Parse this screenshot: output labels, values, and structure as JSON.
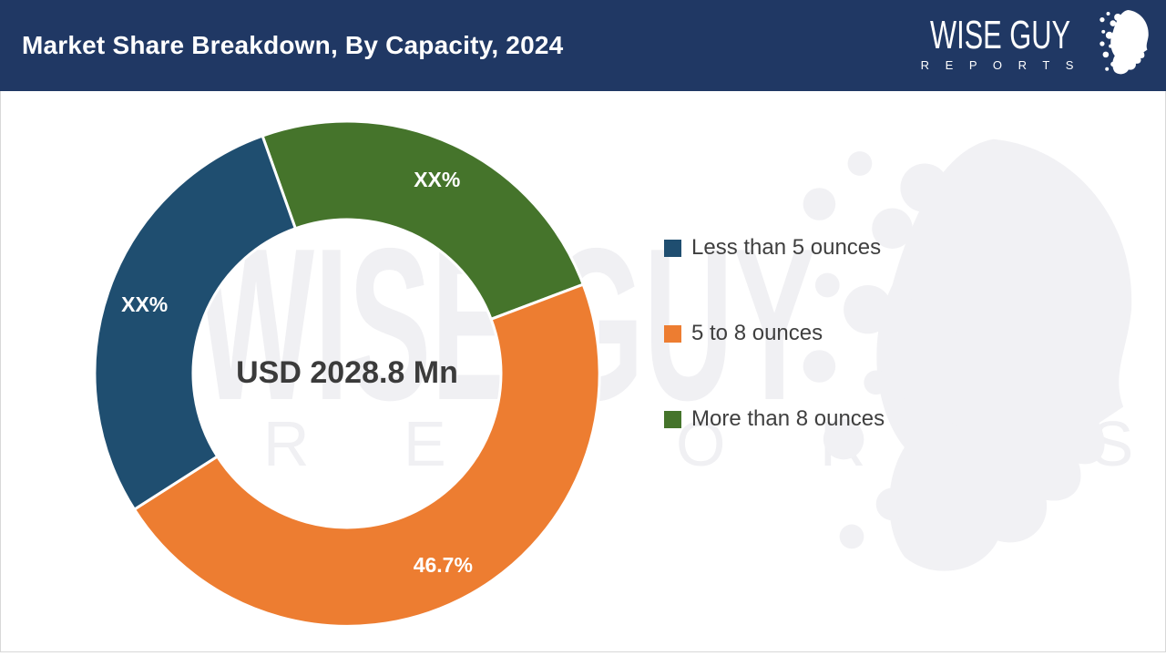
{
  "header": {
    "title": "Market Share Breakdown, By Capacity, 2024",
    "logo": {
      "line1": "WISE GUY",
      "line2": "R E P O R T S"
    }
  },
  "watermark": {
    "line1": "WISE GUY",
    "line2": "R E P O R T S"
  },
  "colors": {
    "header_bg": "#203864",
    "segment_blue": "#1F4E70",
    "segment_orange": "#ED7D31",
    "segment_green": "#45742B",
    "slice_label_text": "#FFFFFF",
    "center_text": "#3B3B3B",
    "legend_text": "#3F3F3F",
    "watermark_grey": "#F0F0F3",
    "border_grey": "#D8D8D8"
  },
  "chart_data": {
    "type": "pie",
    "subtype": "donut",
    "title": "Market Share Breakdown, By Capacity, 2024",
    "center_label": "USD 2028.8 Mn",
    "unit": "%",
    "segments": [
      {
        "name": "Less than 5 ounces",
        "value": 28.6,
        "display_label": "XX%",
        "color": "#1F4E70"
      },
      {
        "name": "5 to 8 ounces",
        "value": 46.7,
        "display_label": "46.7%",
        "color": "#ED7D31"
      },
      {
        "name": "More than 8 ounces",
        "value": 24.7,
        "display_label": "XX%",
        "color": "#45742B"
      }
    ],
    "start_angle_deg": -19.6,
    "draw_order": [
      2,
      1,
      0
    ],
    "hole_radius_ratio": 0.61,
    "legend_position": "right"
  }
}
